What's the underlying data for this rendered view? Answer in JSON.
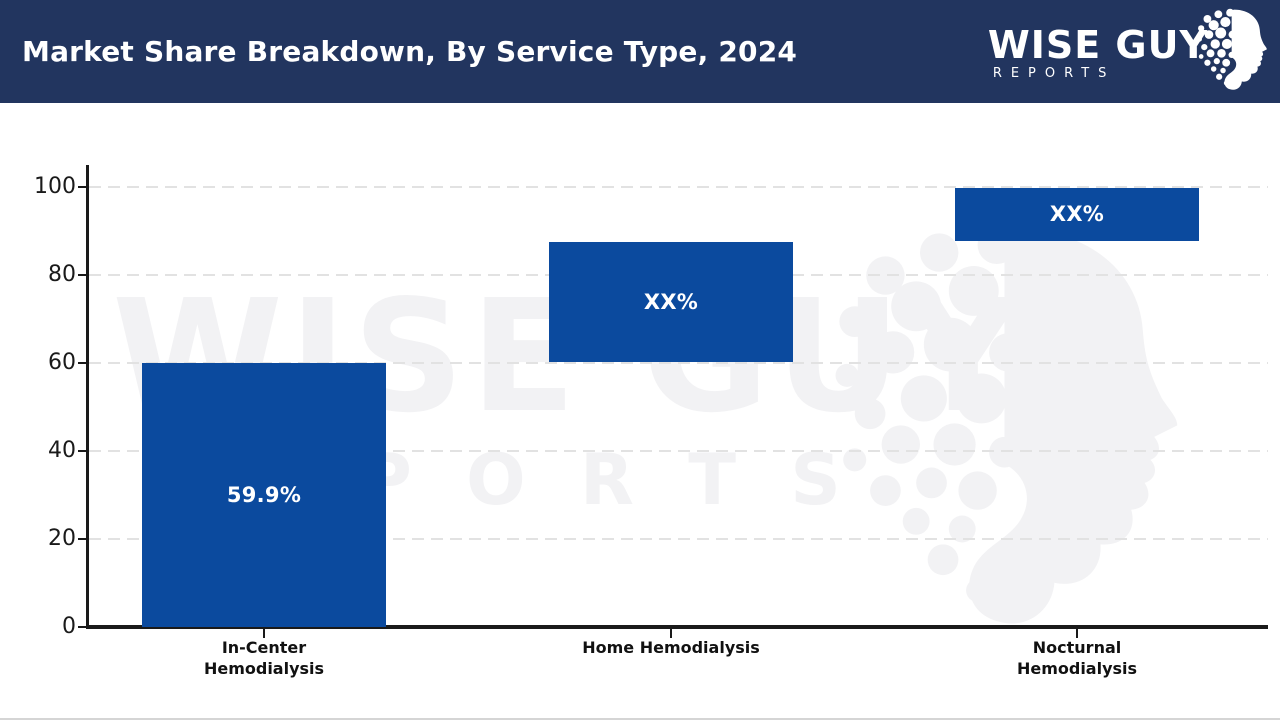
{
  "header": {
    "title": "Market Share Breakdown, By Service Type, 2024",
    "logo": {
      "name": "Wise Guy Reports",
      "line1": "WISE GUY",
      "line2": "REPORTS"
    }
  },
  "watermark": {
    "line1": "WISE GUY",
    "line2": "R E P O R T S"
  },
  "chart_data": {
    "type": "bar",
    "variant": "floating-stacked-percentage",
    "title": "Market Share Breakdown, By Service Type, 2024",
    "categories": [
      "In-Center Hemodialysis",
      "Home Hemodialysis",
      "Nocturnal Hemodialysis"
    ],
    "categories_lines": [
      [
        "In-Center",
        "Hemodialysis"
      ],
      [
        "Home Hemodialysis",
        ""
      ],
      [
        "Nocturnal",
        "Hemodialysis"
      ]
    ],
    "segments": [
      {
        "category": "In-Center Hemodialysis",
        "label": "59.9%",
        "start": 0,
        "end": 59.9
      },
      {
        "category": "Home Hemodialysis",
        "label": "XX%",
        "start": 60.2,
        "end": 87.5
      },
      {
        "category": "Nocturnal Hemodialysis",
        "label": "XX%",
        "start": 87.7,
        "end": 99.8
      }
    ],
    "xlabel": "",
    "ylabel": "",
    "ylim": [
      0,
      100
    ],
    "yticks": [
      0,
      20,
      40,
      60,
      80,
      100
    ],
    "grid": "horizontal-dashed",
    "legend": "none",
    "bar_color": "#0b4a9e",
    "value_label_color": "#ffffff"
  },
  "colors": {
    "header_bg": "#22355f",
    "bar": "#0b4a9e",
    "axis": "#1a1a1a",
    "grid": "#e2e2e2",
    "watermark": "#f2f2f4",
    "page_bg": "#ffffff"
  }
}
